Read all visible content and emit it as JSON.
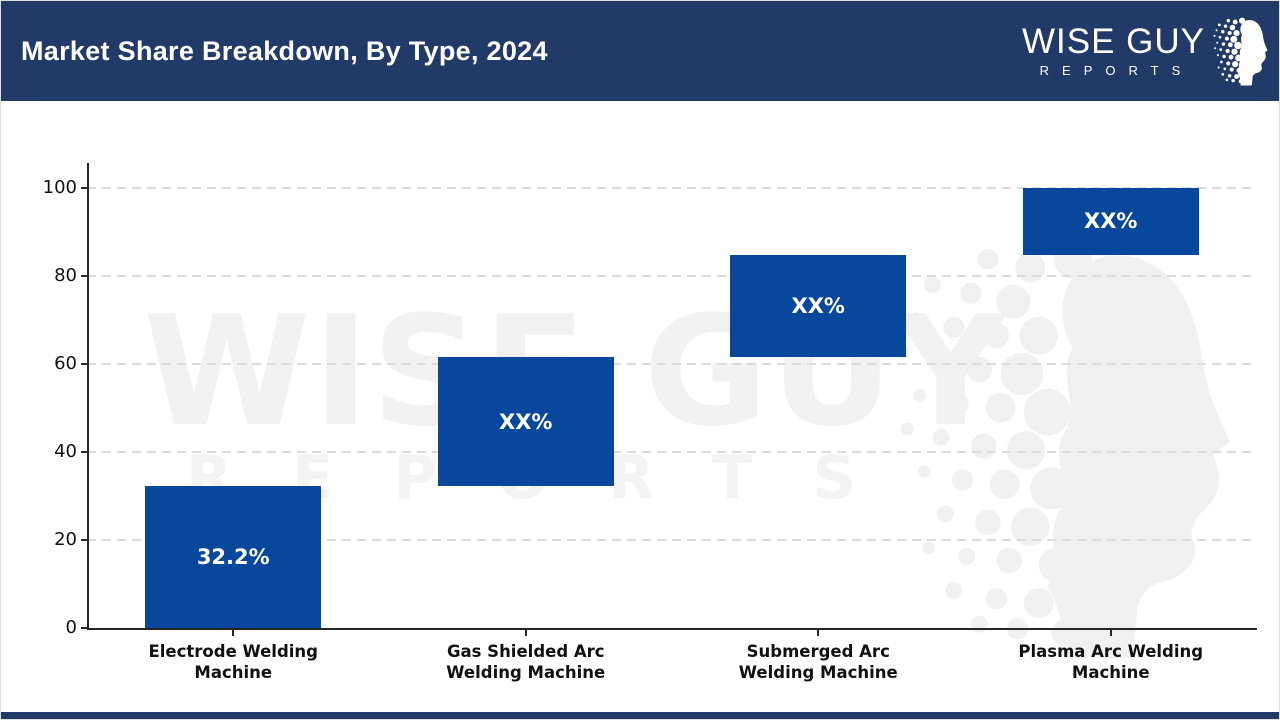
{
  "header": {
    "title": "Market Share Breakdown, By Type, 2024"
  },
  "logo": {
    "name": "WISE GUY",
    "sub": "REPORTS",
    "icon": "dotted-head-profile"
  },
  "watermark": {
    "line1": "WISE GUY",
    "line2": "REPORTS",
    "icon": "dotted-head-profile"
  },
  "colors": {
    "header_bg": "#223a67",
    "footer_bg": "#223a67",
    "bar": "#07489c",
    "bar_label": "#ffffff",
    "grid": "#dcdcdc",
    "axis": "#262626",
    "watermark": "#f0f0f0"
  },
  "chart_data": {
    "type": "bar",
    "subtype": "waterfall",
    "title": "Market Share Breakdown, By Type, 2024",
    "categories": [
      "Electrode Welding Machine",
      "Gas Shielded Arc Welding Machine",
      "Submerged Arc Welding Machine",
      "Plasma Arc Welding Machine"
    ],
    "segments": [
      {
        "category": "Electrode Welding Machine",
        "start": 0,
        "end": 32.2,
        "label": "32.2%"
      },
      {
        "category": "Gas Shielded Arc Welding Machine",
        "start": 32.2,
        "end": 61.6,
        "label": "XX%"
      },
      {
        "category": "Submerged Arc Welding Machine",
        "start": 61.6,
        "end": 84.8,
        "label": "XX%"
      },
      {
        "category": "Plasma Arc Welding Machine",
        "start": 84.8,
        "end": 100,
        "label": "XX%"
      }
    ],
    "ylim": [
      0,
      100
    ],
    "yticks": [
      0,
      20,
      40,
      60,
      80,
      100
    ],
    "xlabel": "",
    "ylabel": "",
    "grid": "horizontal-dashed",
    "legend": "none"
  }
}
